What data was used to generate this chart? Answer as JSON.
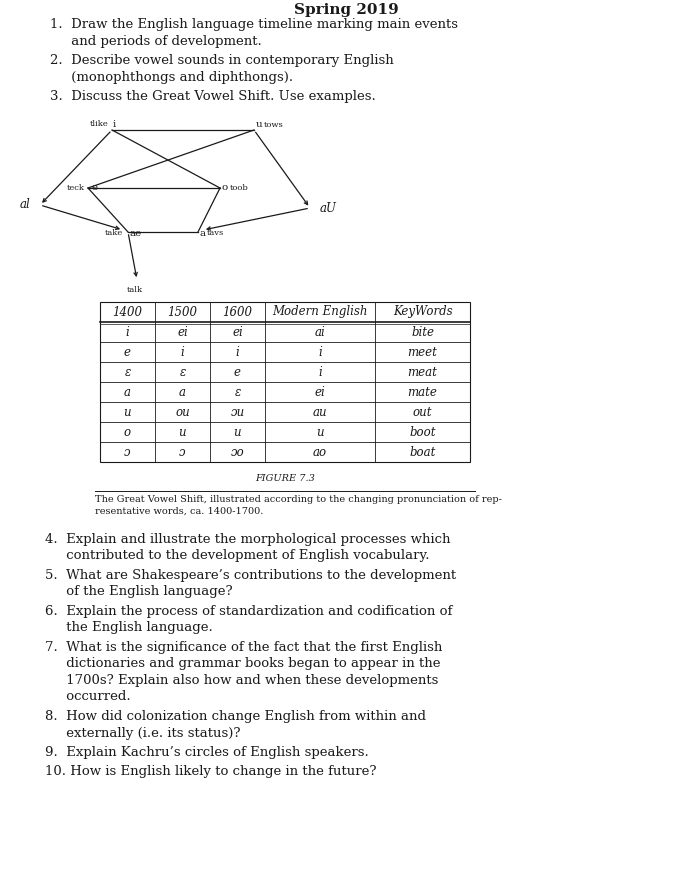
{
  "title": "Spring 2019",
  "bg_color": "#ffffff",
  "text_color": "#1a1a1a",
  "questions": [
    "1.  Draw the English language timeline marking main events\n     and periods of development.",
    "2.  Describe vowel sounds in contemporary English\n     (monophthongs and diphthongs).",
    "3.  Discuss the Great Vowel Shift. Use examples."
  ],
  "questions_bottom": [
    "4.  Explain and illustrate the morphological processes which\n     contributed to the development of English vocabulary.",
    "5.  What are Shakespeare’s contributions to the development\n     of the English language?",
    "6.  Explain the process of standardization and codification of\n     the English language.",
    "7.  What is the significance of the fact that the first English\n     dictionaries and grammar books began to appear in the\n     1700s? Explain also how and when these developments\n     occurred.",
    "8.  How did colonization change English from within and\n     externally (i.e. its status)?",
    "9.  Explain Kachru’s circles of English speakers.",
    "10. How is English likely to change in the future?"
  ],
  "table_headers": [
    "1400",
    "1500",
    "1600",
    "Modern English",
    "KeyWords"
  ],
  "table_data": [
    [
      "i",
      "ei",
      "ei",
      "ai",
      "bite"
    ],
    [
      "e",
      "i",
      "i",
      "i",
      "meet"
    ],
    [
      "ɛ",
      "ɛ",
      "e",
      "i",
      "meat"
    ],
    [
      "a",
      "a",
      "ɛ",
      "ei",
      "mate"
    ],
    [
      "u",
      "ou",
      "ɔu",
      "au",
      "out"
    ],
    [
      "o",
      "u",
      "u",
      "u",
      "boot"
    ],
    [
      "ɔ",
      "ɔ",
      "ɔo",
      "ao",
      "boat"
    ]
  ],
  "figure_caption": "FIGURE 7.3",
  "figure_note": "The Great Vowel Shift, illustrated according to the changing pronunciation of rep-\nresentative words, ca. 1400-1700."
}
